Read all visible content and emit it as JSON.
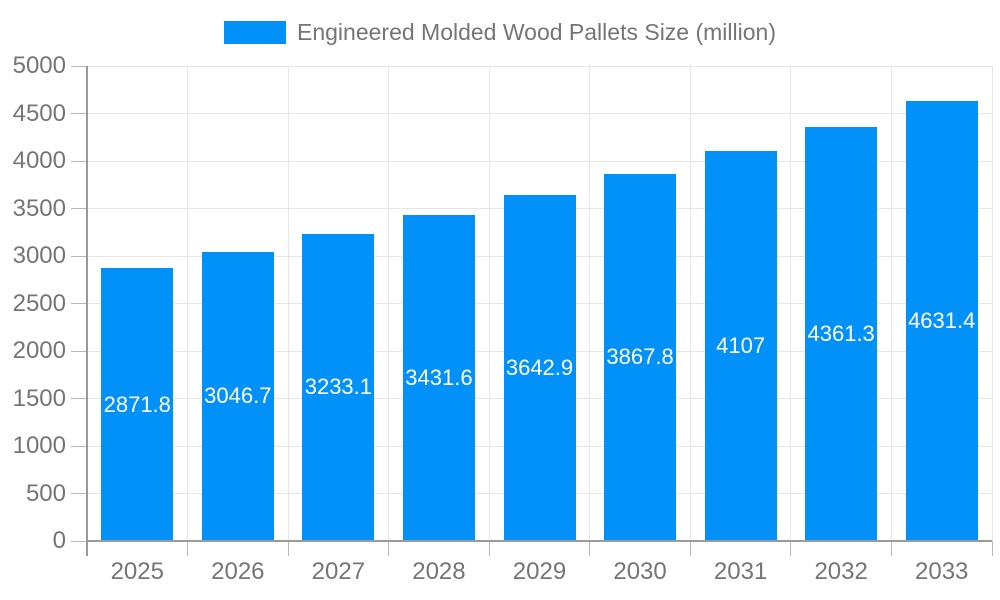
{
  "legend": {
    "label": "Engineered Molded Wood Pallets Size (million)",
    "swatch_color": "#0291f8"
  },
  "chart_data": {
    "type": "bar",
    "title": "Engineered Molded Wood Pallets Size (million)",
    "categories": [
      "2025",
      "2026",
      "2027",
      "2028",
      "2029",
      "2030",
      "2031",
      "2032",
      "2033"
    ],
    "values": [
      2871.8,
      3046.7,
      3233.1,
      3431.6,
      3642.9,
      3867.8,
      4107,
      4361.3,
      4631.4
    ],
    "value_labels": [
      "2871.8",
      "3046.7",
      "3233.1",
      "3431.6",
      "3642.9",
      "3867.8",
      "4107",
      "4361.3",
      "4631.4"
    ],
    "xlabel": "",
    "ylabel": "",
    "ylim": [
      0,
      5000
    ],
    "ytick_step": 500,
    "yticks": [
      0,
      500,
      1000,
      1500,
      2000,
      2500,
      3000,
      3500,
      4000,
      4500,
      5000
    ],
    "grid": true,
    "legend_position": "top",
    "value_label_position": "inside-middle"
  },
  "colors": {
    "bar": "#0291f8",
    "value_text": "#ffffff",
    "label_text": "#757575",
    "grid": "#e6e6e6",
    "tick": "#b8b8b8",
    "axis": "#9a9a9a",
    "background": "#ffffff"
  }
}
